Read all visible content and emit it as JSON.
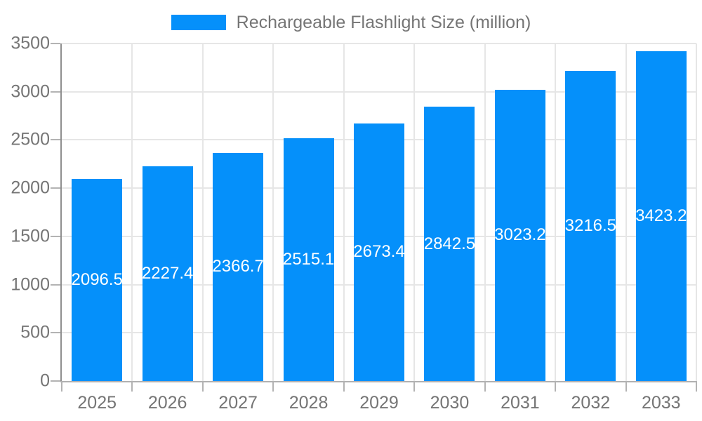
{
  "chart_data": {
    "type": "bar",
    "title": "Rechargeable Flashlight Size (million)",
    "categories": [
      "2025",
      "2026",
      "2027",
      "2028",
      "2029",
      "2030",
      "2031",
      "2032",
      "2033"
    ],
    "series": [
      {
        "name": "Rechargeable Flashlight Size (million)",
        "values": [
          2096.5,
          2227.4,
          2366.7,
          2515.1,
          2673.4,
          2842.5,
          3023.2,
          3216.5,
          3423.2
        ]
      }
    ],
    "value_labels": [
      "2096.5",
      "2227.4",
      "2366.7",
      "2515.1",
      "2673.4",
      "2842.5",
      "3023.2",
      "3216.5",
      "3423.2"
    ],
    "xlabel": "",
    "ylabel": "",
    "ylim": [
      0,
      3500
    ],
    "ytick_step": 500,
    "ytick_labels": [
      "0",
      "500",
      "1000",
      "1500",
      "2000",
      "2500",
      "3000",
      "3500"
    ],
    "grid": "on",
    "legend_position": "top-center",
    "value_label_position": "inside-middle",
    "colors": {
      "bar": "#0590fa",
      "value_label": "#ffffff",
      "tick_label": "#757575",
      "legend_label": "#757575",
      "gridline": "#e6e6e6",
      "y_axis_line": "#8f8f8f",
      "x_axis_line": "#b0b0b0",
      "background": "#ffffff"
    }
  }
}
